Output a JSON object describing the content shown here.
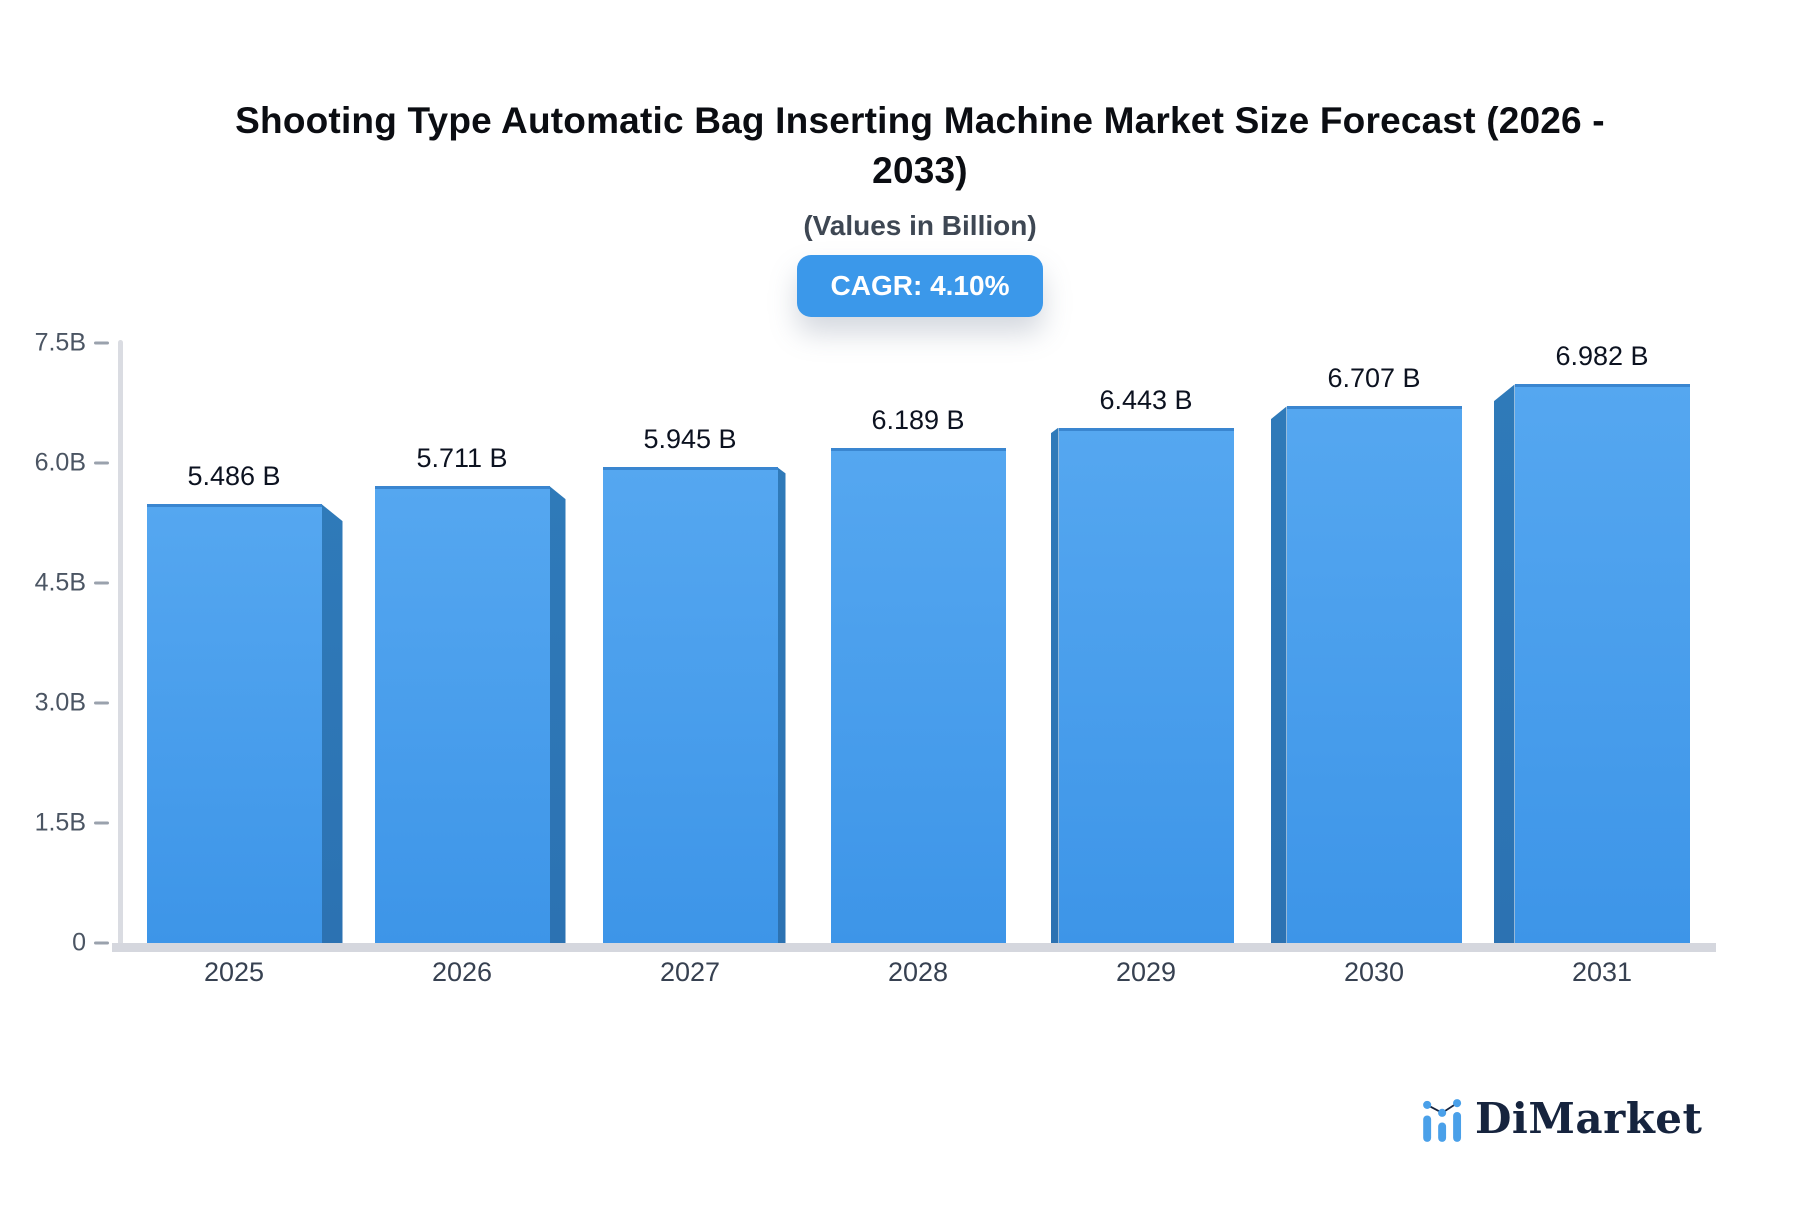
{
  "header": {
    "title_line1": "Shooting Type Automatic Bag Inserting Machine Market Size Forecast (2026 -",
    "title_line2": "2033)",
    "subtitle": "(Values in Billion)",
    "cagr_badge": "CAGR: 4.10%"
  },
  "chart_data": {
    "type": "bar",
    "title": "Shooting Type Automatic Bag Inserting Machine Market Size Forecast (2026 - 2033)",
    "subtitle": "(Values in Billion)",
    "cagr_percent": "4.10%",
    "categories": [
      "2025",
      "2026",
      "2027",
      "2028",
      "2029",
      "2030",
      "2031"
    ],
    "values": [
      5.486,
      5.711,
      5.945,
      6.189,
      6.443,
      6.707,
      6.982
    ],
    "value_labels": [
      "5.486 B",
      "5.711 B",
      "5.945 B",
      "6.189 B",
      "6.443 B",
      "6.707 B",
      "6.982 B"
    ],
    "unit": "Billion",
    "ylim": [
      0,
      7.5
    ],
    "ytick_labels_top_down": [
      "7.5B",
      "6.0B",
      "4.5B",
      "3.0B",
      "1.5B",
      "0"
    ],
    "grid": false,
    "legend": false,
    "bar_style": "3d-perspective, vanishing point at center"
  },
  "colors": {
    "badge_blue": "#3b98ea",
    "bar_face_top": "#55a7f0",
    "bar_face_bottom": "#3d95e8",
    "bar_side": "#2d75b5",
    "bar_top_edge": "#3a86d0",
    "axis_gray": "#d5d7de",
    "tick_gray": "#9aa2ad",
    "y_label_gray": "#4b5563",
    "x_label_dark": "#374151",
    "value_label_dark": "#0c1220",
    "logo_navy": "#16243e",
    "logo_blue": "#4aa0e9"
  },
  "logo": {
    "text": "DiMarket"
  }
}
